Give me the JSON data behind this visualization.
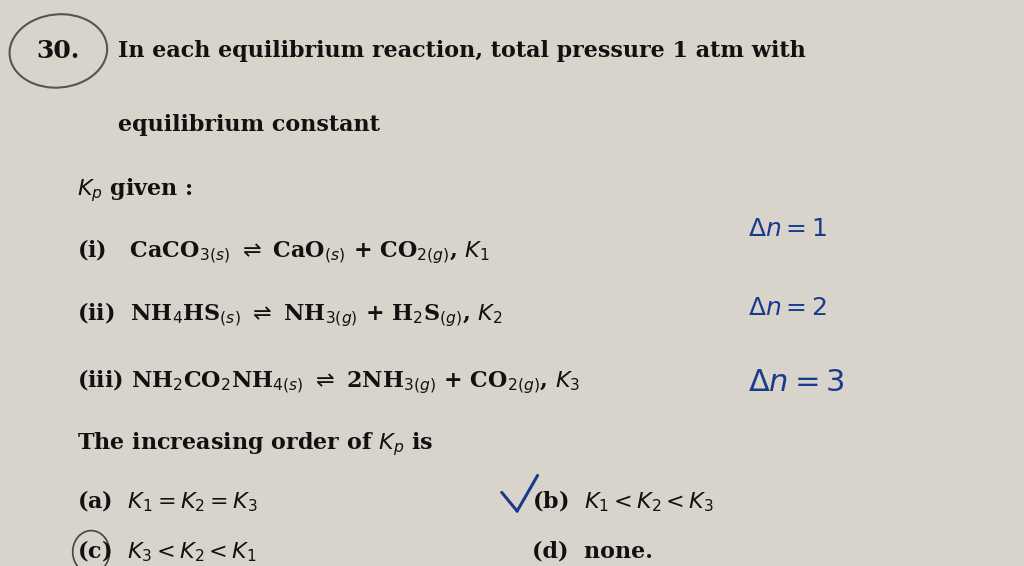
{
  "background_color": "#d8d4cc",
  "question_number": "30.",
  "title_line1": "In each equilibrium reaction, total pressure 1 atm with",
  "title_line2": "equilibrium constant",
  "kp_given": "$K_p$ given :",
  "reaction_i": "(i)   CaCO$_{3(s)}$ $\\rightleftharpoons$ CaO$_{(s)}$ + CO$_{2(g)}$, $K_1$",
  "reaction_ii": "(ii)  NH$_4$HS$_{(s)}$ $\\rightleftharpoons$ NH$_{3(g)}$ + H$_2$S$_{(g)}$, $K_2$",
  "reaction_iii": "(iii) NH$_2$CO$_2$NH$_{4(s)}$ $\\rightleftharpoons$ 2NH$_{3(g)}$ + CO$_{2(g)}$, $K_3$",
  "annotation_i": "$\\Delta n = 1$",
  "annotation_ii": "$\\Delta n = 2$",
  "annotation_iii": "$\\Delta n = 3$",
  "increasing_order": "The increasing order of $K_p$ is",
  "option_a": "(a)  $K_1 = K_2 = K_3$",
  "option_b": "(b)  $K_1 < K_2 < K_3$",
  "option_c": "(c)  $K_3 < K_2 < K_1$",
  "option_d": "(d)  none.",
  "font_size_main": 16,
  "font_size_annot": 18,
  "font_size_annot_iii": 22,
  "text_color": "#111111",
  "annot_color": "#1a3a8a"
}
